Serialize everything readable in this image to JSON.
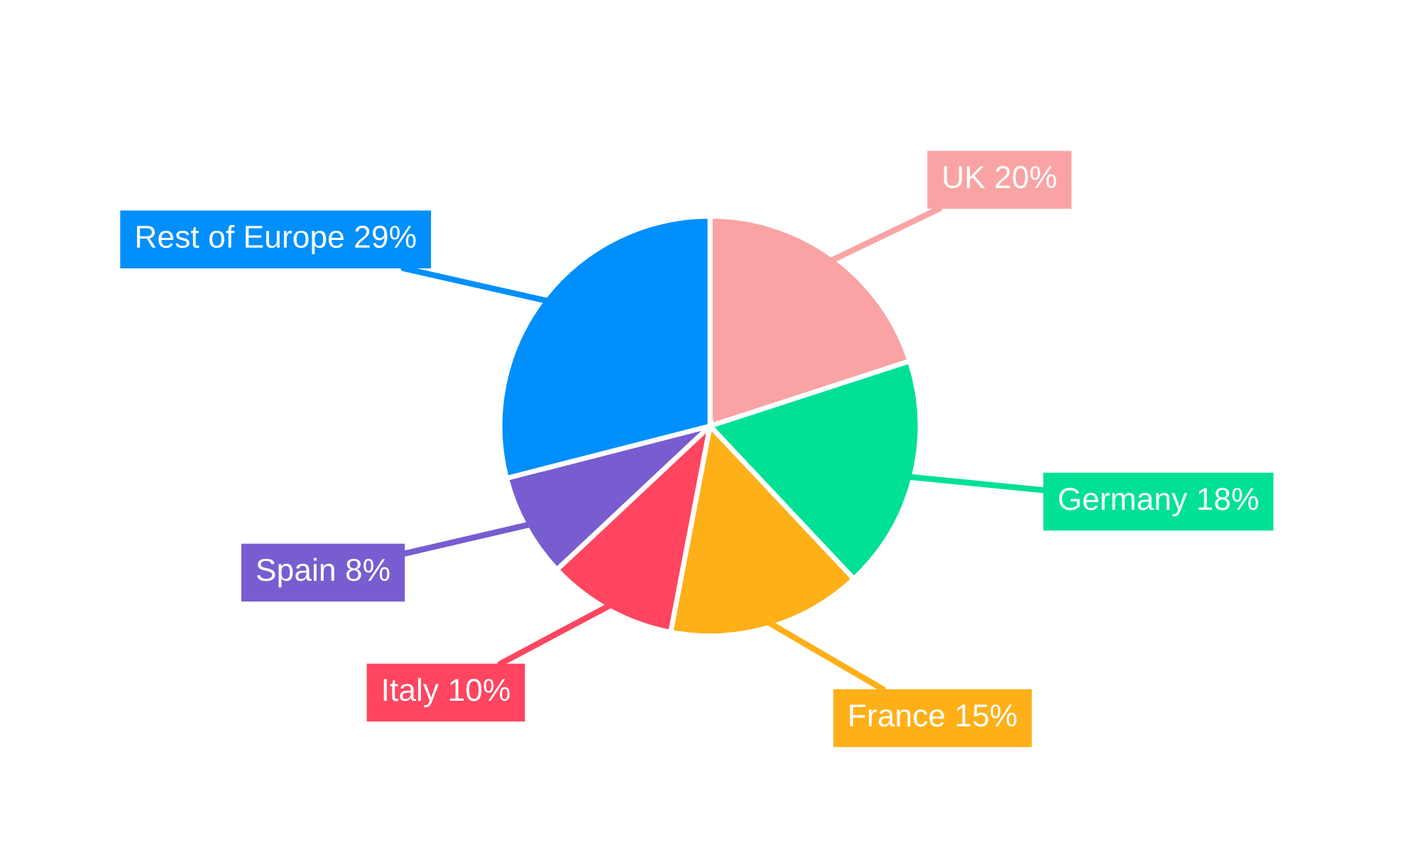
{
  "chart_data": {
    "type": "pie",
    "categories": [
      "UK",
      "Germany",
      "France",
      "Italy",
      "Spain",
      "Rest of Europe"
    ],
    "values": [
      20,
      18,
      15,
      10,
      8,
      29
    ],
    "colors": [
      "#f9a3a4",
      "#00e096",
      "#feb019",
      "#ff4560",
      "#775dd0",
      "#008ffb"
    ],
    "value_labels": [
      "20%",
      "18%",
      "15%",
      "10%",
      "8%",
      "29%"
    ],
    "legend": false
  }
}
